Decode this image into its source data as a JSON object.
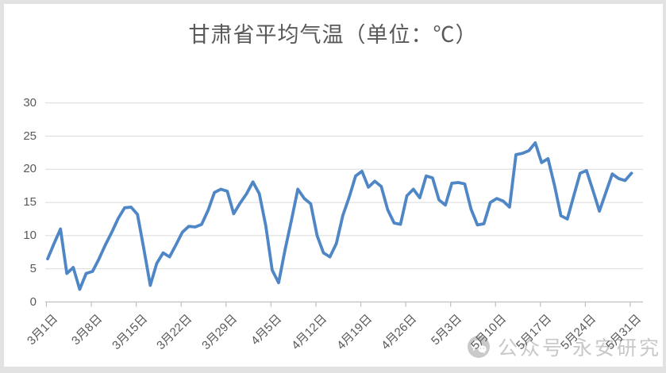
{
  "watermark": {
    "icon": "wechat-icon",
    "text": "公众号 永安研究"
  },
  "chart_data": {
    "type": "line",
    "title": "甘肃省平均气温（单位：℃）",
    "unit": "℃",
    "legend_position": "none",
    "grid": "horizontal-only",
    "ylim": [
      0,
      30
    ],
    "y_ticks": [
      0,
      5,
      10,
      15,
      20,
      25,
      30
    ],
    "x_tick_labels": [
      "3月1日",
      "3月8日",
      "3月15日",
      "3月22日",
      "3月29日",
      "4月5日",
      "4月12日",
      "4月19日",
      "4月26日",
      "5月3日",
      "5月10日",
      "5月17日",
      "5月24日",
      "5月31日"
    ],
    "x_tick_indices": [
      0,
      7,
      14,
      21,
      28,
      35,
      42,
      49,
      56,
      63,
      70,
      77,
      84,
      91
    ],
    "line_color": "#4f86c5",
    "gridline_color": "#d9d9d9",
    "axis_color": "#bfbfbf",
    "text_color": "#595959",
    "x": [
      "3月1日",
      "3月2日",
      "3月3日",
      "3月4日",
      "3月5日",
      "3月6日",
      "3月7日",
      "3月8日",
      "3月9日",
      "3月10日",
      "3月11日",
      "3月12日",
      "3月13日",
      "3月14日",
      "3月15日",
      "3月16日",
      "3月17日",
      "3月18日",
      "3月19日",
      "3月20日",
      "3月21日",
      "3月22日",
      "3月23日",
      "3月24日",
      "3月25日",
      "3月26日",
      "3月27日",
      "3月28日",
      "3月29日",
      "3月30日",
      "3月31日",
      "4月1日",
      "4月2日",
      "4月3日",
      "4月4日",
      "4月5日",
      "4月6日",
      "4月7日",
      "4月8日",
      "4月9日",
      "4月10日",
      "4月11日",
      "4月12日",
      "4月13日",
      "4月14日",
      "4月15日",
      "4月16日",
      "4月17日",
      "4月18日",
      "4月19日",
      "4月20日",
      "4月21日",
      "4月22日",
      "4月23日",
      "4月24日",
      "4月25日",
      "4月26日",
      "4月27日",
      "4月28日",
      "4月29日",
      "4月30日",
      "5月1日",
      "5月2日",
      "5月3日",
      "5月4日",
      "5月5日",
      "5月6日",
      "5月7日",
      "5月8日",
      "5月9日",
      "5月10日",
      "5月11日",
      "5月12日",
      "5月13日",
      "5月14日",
      "5月15日",
      "5月16日",
      "5月17日",
      "5月18日",
      "5月19日",
      "5月20日",
      "5月21日",
      "5月22日",
      "5月23日",
      "5月24日",
      "5月25日",
      "5月26日",
      "5月27日",
      "5月28日",
      "5月29日",
      "5月30日",
      "5月31日"
    ],
    "values": [
      6.5,
      8.8,
      11,
      4.3,
      5.2,
      1.9,
      4.3,
      4.6,
      6.5,
      8.6,
      10.5,
      12.6,
      14.2,
      14.3,
      13.2,
      8,
      2.5,
      5.8,
      7.4,
      6.8,
      8.6,
      10.5,
      11.4,
      11.3,
      11.7,
      13.8,
      16.5,
      17,
      16.7,
      13.3,
      14.9,
      16.3,
      18.1,
      16.3,
      11.5,
      4.8,
      2.9,
      7.8,
      12.3,
      17,
      15.6,
      14.8,
      10,
      7.4,
      6.8,
      8.8,
      13,
      15.8,
      19,
      19.7,
      17.3,
      18.2,
      17.4,
      13.9,
      11.9,
      11.7,
      16,
      17,
      15.7,
      19,
      18.7,
      15.4,
      14.6,
      17.9,
      18,
      17.8,
      14,
      11.6,
      11.8,
      15,
      15.6,
      15.2,
      14.3,
      22.2,
      22.4,
      22.8,
      24,
      21,
      21.6,
      17.6,
      13,
      12.5,
      16,
      19.4,
      19.8,
      16.8,
      13.7,
      16.5,
      19.3,
      18.6,
      18.3,
      19.4
    ]
  }
}
